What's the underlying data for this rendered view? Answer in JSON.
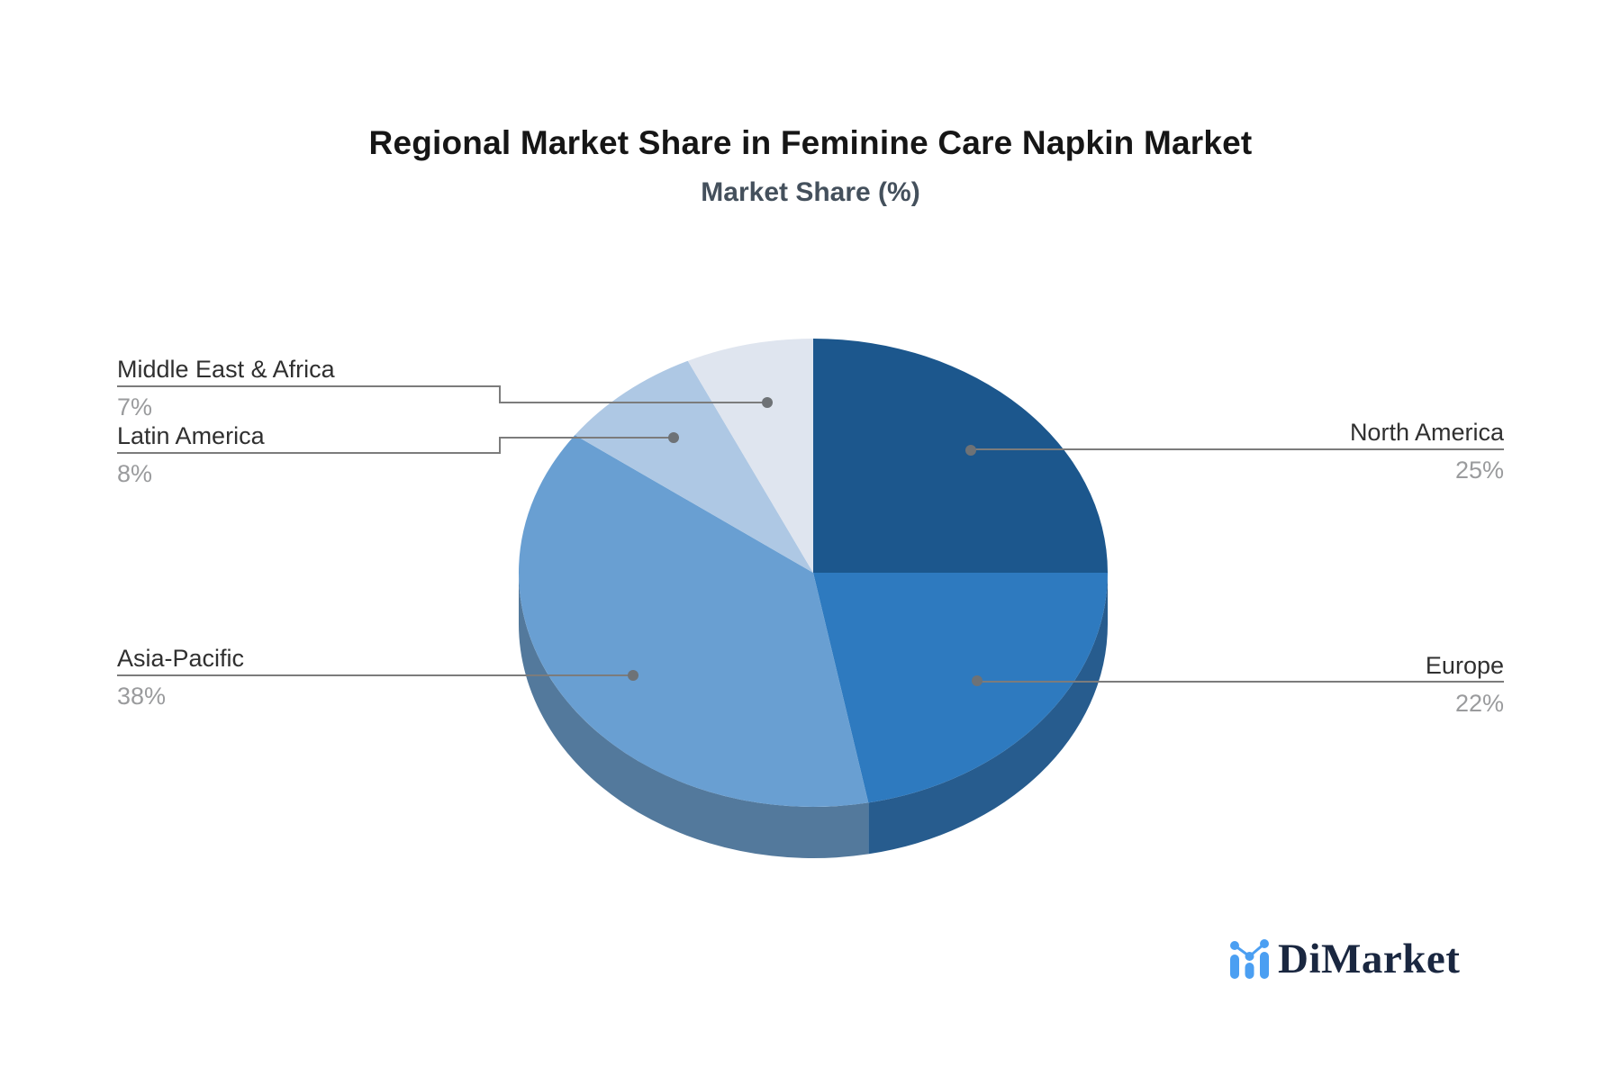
{
  "title": "Regional Market Share in Feminine Care Napkin Market",
  "subtitle": "Market Share (%)",
  "logo": {
    "text": "DiMarket",
    "icon": "bar-line-chart-icon",
    "icon_color": "#4b9ff2",
    "text_color": "#1a2740"
  },
  "colors": {
    "background": "#ffffff",
    "leader_line": "#7c7c7c",
    "leader_dot": "#6e7276",
    "label_text": "#303030",
    "pct_text": "#9a9b9d",
    "title_text": "#161616",
    "subtitle_text": "#44505c"
  },
  "chart_data": {
    "type": "pie",
    "title": "Regional Market Share in Feminine Care Napkin Market",
    "subtitle": "Market Share (%)",
    "effect": "3d",
    "start_angle_deg": 0,
    "direction": "clockwise",
    "legend_position": "callout-labels",
    "slices": [
      {
        "label": "North America",
        "value": 25,
        "pct": "25%",
        "color": "#1c578d",
        "side_color": "#17466f"
      },
      {
        "label": "Europe",
        "value": 22,
        "pct": "22%",
        "color": "#2e7abf",
        "side_color": "#275c8e"
      },
      {
        "label": "Asia-Pacific",
        "value": 38,
        "pct": "38%",
        "color": "#699fd2",
        "side_color": "#53799c"
      },
      {
        "label": "Latin America",
        "value": 8,
        "pct": "8%",
        "color": "#aec8e4",
        "side_color": "#8ba0b6"
      },
      {
        "label": "Middle East & Africa",
        "value": 7,
        "pct": "7%",
        "color": "#dfe5ef",
        "side_color": "#b2b8c0"
      }
    ]
  }
}
